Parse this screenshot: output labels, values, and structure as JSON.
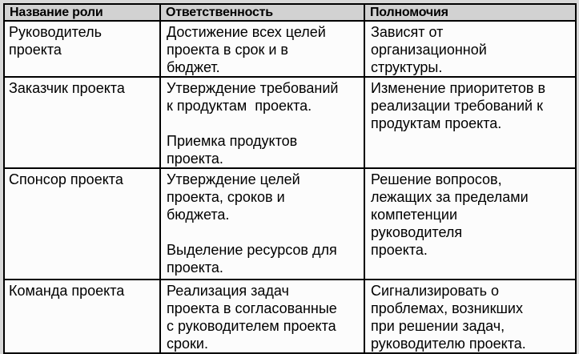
{
  "colors": {
    "page_background": "#d8d8d8",
    "header_background": "#d2d2d2",
    "cell_background": "#fcfcfc",
    "border": "#000000",
    "text": "#000000"
  },
  "table": {
    "columns": [
      {
        "key": "role",
        "label": "Название роли"
      },
      {
        "key": "responsibility",
        "label": "Ответственность"
      },
      {
        "key": "authority",
        "label": "Полномочия"
      }
    ],
    "rows": [
      {
        "role": "Руководитель\nпроекта",
        "responsibility": "Достижение всех целей\nпроекта в срок и в\nбюджет.",
        "authority": "Зависят от\nорганизационной\nструктуры."
      },
      {
        "role": "Заказчик проекта",
        "responsibility": "Утверждение требований\nк продуктам  проекта.\n\nПриемка продуктов\nпроекта.",
        "authority": "Изменение приоритетов в\nреализации требований к\nпродуктам проекта."
      },
      {
        "role": "Спонсор проекта",
        "responsibility": "Утверждение целей\nпроекта, сроков и\nбюджета.\n\nВыделение ресурсов для\nпроекта.",
        "authority": "Решение вопросов,\nлежащих за пределами\nкомпетенции\nруководителя\nпроекта."
      },
      {
        "role": "Команда проекта",
        "responsibility": "Реализация задач\nпроекта в согласованные\nс руководителем проекта\nсроки.",
        "authority": "Сигнализировать о\nпроблемах, возникших\nпри решении задач,\nруководителю проекта."
      }
    ]
  }
}
